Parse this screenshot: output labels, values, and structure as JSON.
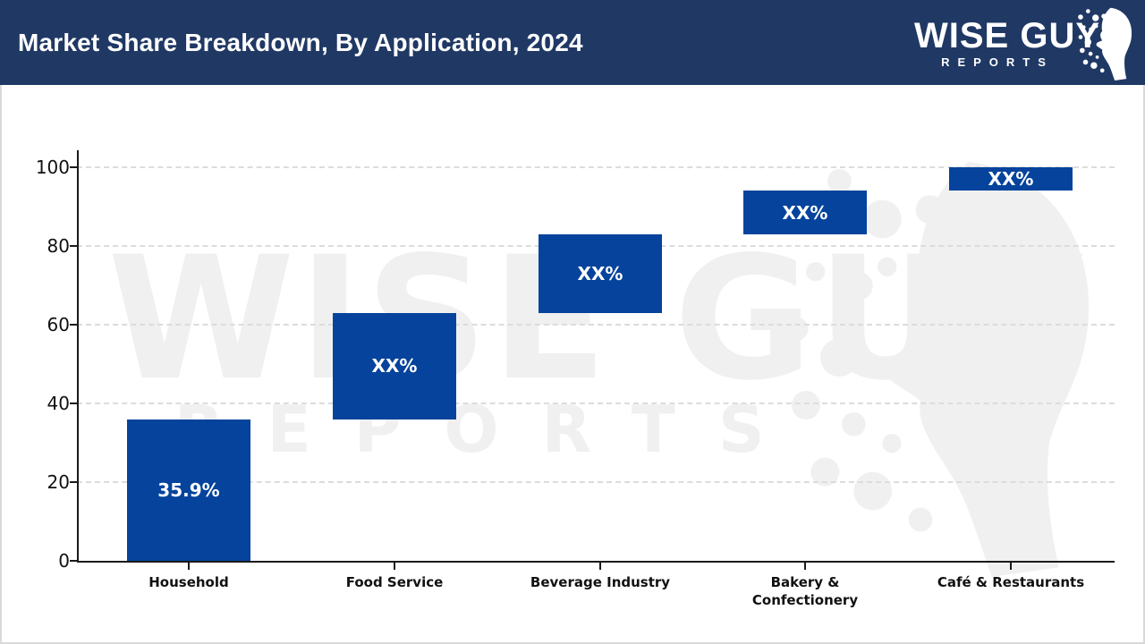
{
  "header": {
    "title": "Market Share Breakdown, By Application, 2024",
    "bg_color": "#203864",
    "logo": {
      "line1": "WISE GUY",
      "line2": "REPORTS"
    }
  },
  "watermark": {
    "line1": "WISE GUY",
    "line2": "REPORTS"
  },
  "chart_data": {
    "type": "bar",
    "subtype": "waterfall",
    "title": "Market Share Breakdown, By Application, 2024",
    "categories": [
      "Household",
      "Food Service",
      "Beverage Industry",
      "Bakery & Confectionery",
      "Café & Restaurants"
    ],
    "series": [
      {
        "name": "Market Share (%)",
        "segments": [
          {
            "category": "Household",
            "start": 0,
            "end": 35.9,
            "label": "35.9%"
          },
          {
            "category": "Food Service",
            "start": 35.9,
            "end": 63,
            "label": "XX%"
          },
          {
            "category": "Beverage Industry",
            "start": 63,
            "end": 83,
            "label": "XX%"
          },
          {
            "category": "Bakery & Confectionery",
            "start": 83,
            "end": 94,
            "label": "XX%"
          },
          {
            "category": "Café & Restaurants",
            "start": 94,
            "end": 100,
            "label": "XX%"
          }
        ]
      }
    ],
    "xlabel": "",
    "ylabel": "",
    "ylim": [
      0,
      100
    ],
    "yticks": [
      0,
      20,
      40,
      60,
      80,
      100
    ],
    "grid": "horizontal-dashed",
    "legend": "none",
    "bar_color": "#05439c",
    "bar_label_color": "#ffffff",
    "grid_color": "#dcdcdc",
    "axis_color": "#1a1a1a"
  }
}
